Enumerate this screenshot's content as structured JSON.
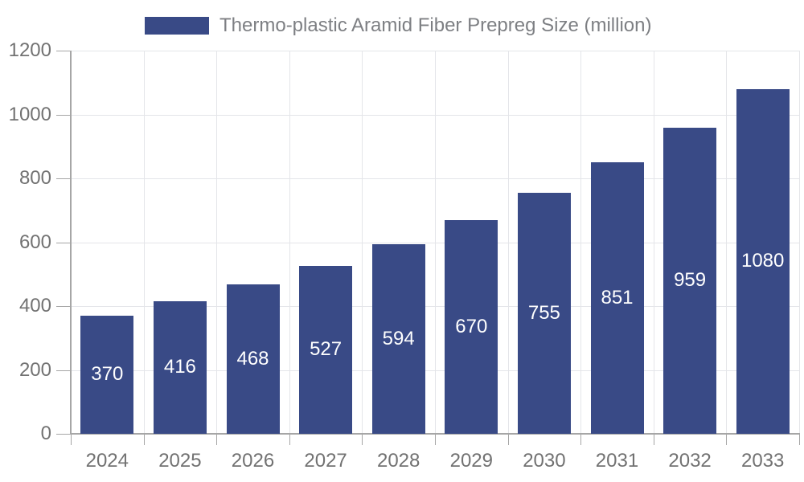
{
  "legend": {
    "label": "Thermo-plastic Aramid Fiber Prepreg Size (million)"
  },
  "chart_data": {
    "type": "bar",
    "title": "Thermo-plastic Aramid Fiber Prepreg Size (million)",
    "categories": [
      "2024",
      "2025",
      "2026",
      "2027",
      "2028",
      "2029",
      "2030",
      "2031",
      "2032",
      "2033"
    ],
    "values": [
      370,
      416,
      468,
      527,
      594,
      670,
      755,
      851,
      959,
      1080
    ],
    "xlabel": "",
    "ylabel": "",
    "ylim": [
      0,
      1200
    ],
    "yticks": [
      0,
      200,
      400,
      600,
      800,
      1000,
      1200
    ],
    "grid": true,
    "legend_position": "top",
    "bar_color": "#394A86",
    "value_label_color": "#FFFFFF",
    "gridline_color": "#E4E5E9",
    "axis_color": "#A6A6A6",
    "tick_label_color": "#727272",
    "legend_text_color": "#7D7F83"
  }
}
